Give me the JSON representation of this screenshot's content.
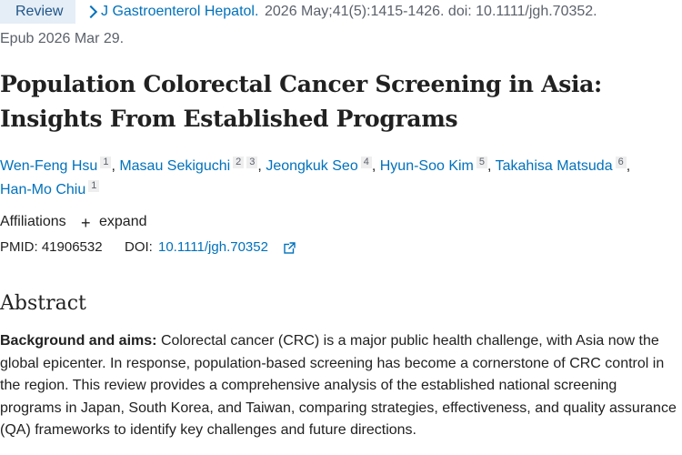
{
  "header": {
    "badge_label": "Review",
    "journal_link": "J Gastroenterol Hepatol.",
    "citation": "2026 May;41(5):1415-1426. doi: 10.1111/jgh.70352.",
    "epub": "Epub 2026 Mar 29."
  },
  "article": {
    "title": "Population Colorectal Cancer Screening in Asia: Insights From Established Programs",
    "authors": [
      {
        "name": "Wen-Feng Hsu",
        "affiliations": [
          "1"
        ]
      },
      {
        "name": "Masau Sekiguchi",
        "affiliations": [
          "2",
          "3"
        ]
      },
      {
        "name": "Jeongkuk Seo",
        "affiliations": [
          "4"
        ]
      },
      {
        "name": "Hyun-Soo Kim",
        "affiliations": [
          "5"
        ]
      },
      {
        "name": "Takahisa Matsuda",
        "affiliations": [
          "6"
        ]
      },
      {
        "name": "Han-Mo Chiu",
        "affiliations": [
          "1"
        ]
      }
    ],
    "affiliations_label": "Affiliations",
    "expand_label": "expand",
    "pmid_label": "PMID: 41906532",
    "doi_label": "DOI:",
    "doi_link": "10.1111/jgh.70352"
  },
  "abstract": {
    "heading": "Abstract",
    "section_label": "Background and aims:",
    "section_text": "Colorectal cancer (CRC) is a major public health challenge, with Asia now the global epicenter. In response, population-based screening has become a cornerstone of CRC control in the region. This review provides a comprehensive analysis of the established national screening programs in Japan, South Korea, and Taiwan, comparing strategies, effectiveness, and quality assurance (QA) frameworks to identify key challenges and future directions."
  },
  "icons": {
    "breadcrumb": "chevron-right-icon",
    "expand": "plus-icon",
    "doi": "external-link-icon"
  },
  "colors": {
    "link": "#0071bc",
    "badge_bg": "#e5eef6",
    "text": "#212121",
    "muted": "#5b616b"
  }
}
